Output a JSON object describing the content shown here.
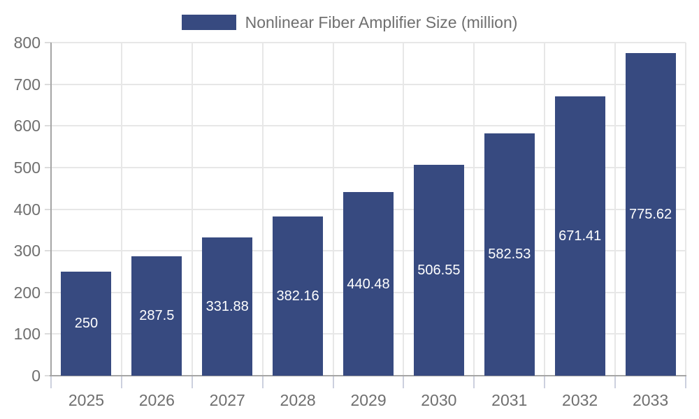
{
  "chart_data": {
    "type": "bar",
    "title": "",
    "categories": [
      "2025",
      "2026",
      "2027",
      "2028",
      "2029",
      "2030",
      "2031",
      "2032",
      "2033"
    ],
    "series": [
      {
        "name": "Nonlinear Fiber Amplifier Size (million)",
        "values": [
          250,
          287.5,
          331.88,
          382.16,
          440.48,
          506.55,
          582.53,
          671.41,
          775.62
        ],
        "value_labels": [
          "250",
          "287.5",
          "331.88",
          "382.16",
          "440.48",
          "506.55",
          "582.53",
          "671.41",
          "775.62"
        ],
        "color": "#374A80"
      }
    ],
    "xlabel": "",
    "ylabel": "",
    "ylim": [
      0,
      800
    ],
    "yticks": [
      0,
      100,
      200,
      300,
      400,
      500,
      600,
      700,
      800
    ],
    "grid": true,
    "legend_position": "top-center",
    "value_label_color": "#ffffff",
    "colors": {
      "bar": "#374A80",
      "grid": "#e7e7e7",
      "axis": "#a5a5a5",
      "tick_label": "#6f6f6f",
      "legend_text": "#6f6f6f",
      "background": "#ffffff"
    }
  }
}
